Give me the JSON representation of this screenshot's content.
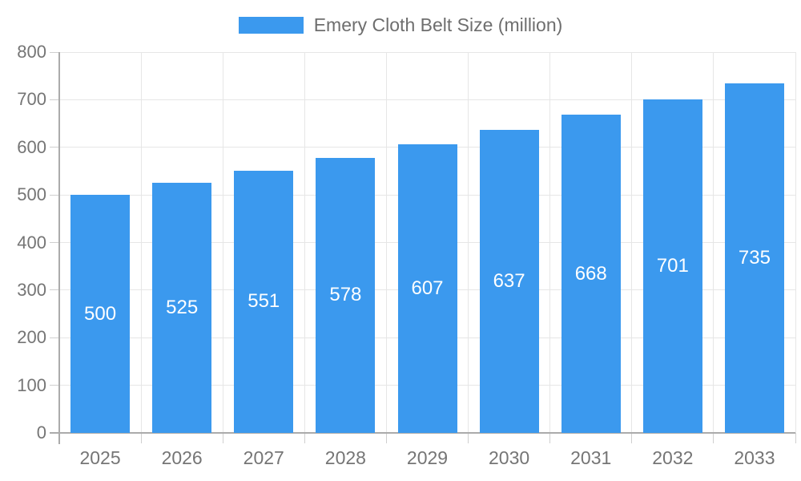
{
  "legend": {
    "label": "Emery Cloth Belt Size (million)"
  },
  "chart_data": {
    "type": "bar",
    "title": "",
    "categories": [
      "2025",
      "2026",
      "2027",
      "2028",
      "2029",
      "2030",
      "2031",
      "2032",
      "2033"
    ],
    "series": [
      {
        "name": "Emery Cloth Belt Size (million)",
        "values": [
          500,
          525,
          551,
          578,
          607,
          637,
          668,
          701,
          735
        ]
      }
    ],
    "value_labels": [
      "500",
      "525",
      "551",
      "578",
      "607",
      "637",
      "668",
      "701",
      "735"
    ],
    "xlabel": "",
    "ylabel": "",
    "ylim": [
      0,
      800
    ],
    "yticks": [
      0,
      100,
      200,
      300,
      400,
      500,
      600,
      700,
      800
    ],
    "grid": true,
    "legend_position": "top",
    "colors": {
      "bar": "#3B99EE",
      "value_label": "#FFFFFF",
      "axis_text": "#757575",
      "legend_text": "#6E6E6E",
      "grid_line": "#E6E6E6",
      "tick_line": "#CFCFCF",
      "axis_line": "#ABABAB",
      "background": "#FFFFFF"
    }
  }
}
